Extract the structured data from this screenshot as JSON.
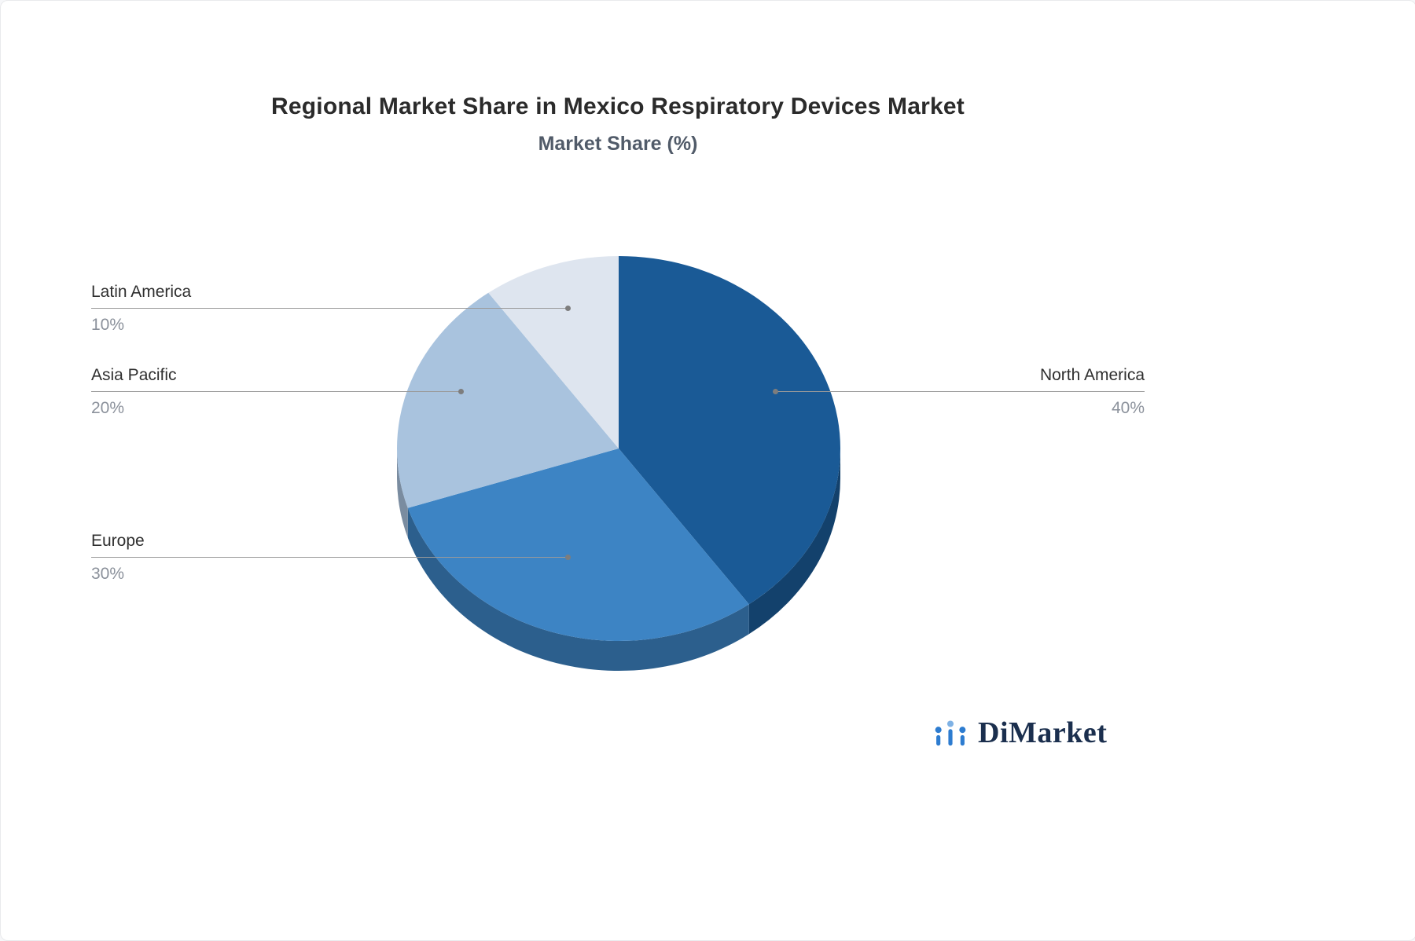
{
  "chart_data": {
    "type": "pie",
    "style": "3d",
    "title": "Regional Market Share in Mexico Respiratory Devices Market",
    "subtitle": "Market Share (%)",
    "unit": "%",
    "labels": [
      "North America",
      "Europe",
      "Asia Pacific",
      "Latin America"
    ],
    "values": [
      40,
      30,
      20,
      10
    ],
    "value_labels": [
      "40%",
      "30%",
      "20%",
      "10%"
    ],
    "colors": [
      "#1A5A96",
      "#3D84C4",
      "#A9C3DE",
      "#DEE5EF"
    ],
    "start_angle_deg": 0,
    "direction": "clockwise",
    "legend_position": "none",
    "callout_line_color": "#9a9a9a"
  },
  "branding": {
    "logo_text": "DiMarket",
    "logo_icon": "bar-chart-icon",
    "logo_accent_color": "#2d7cd0"
  }
}
